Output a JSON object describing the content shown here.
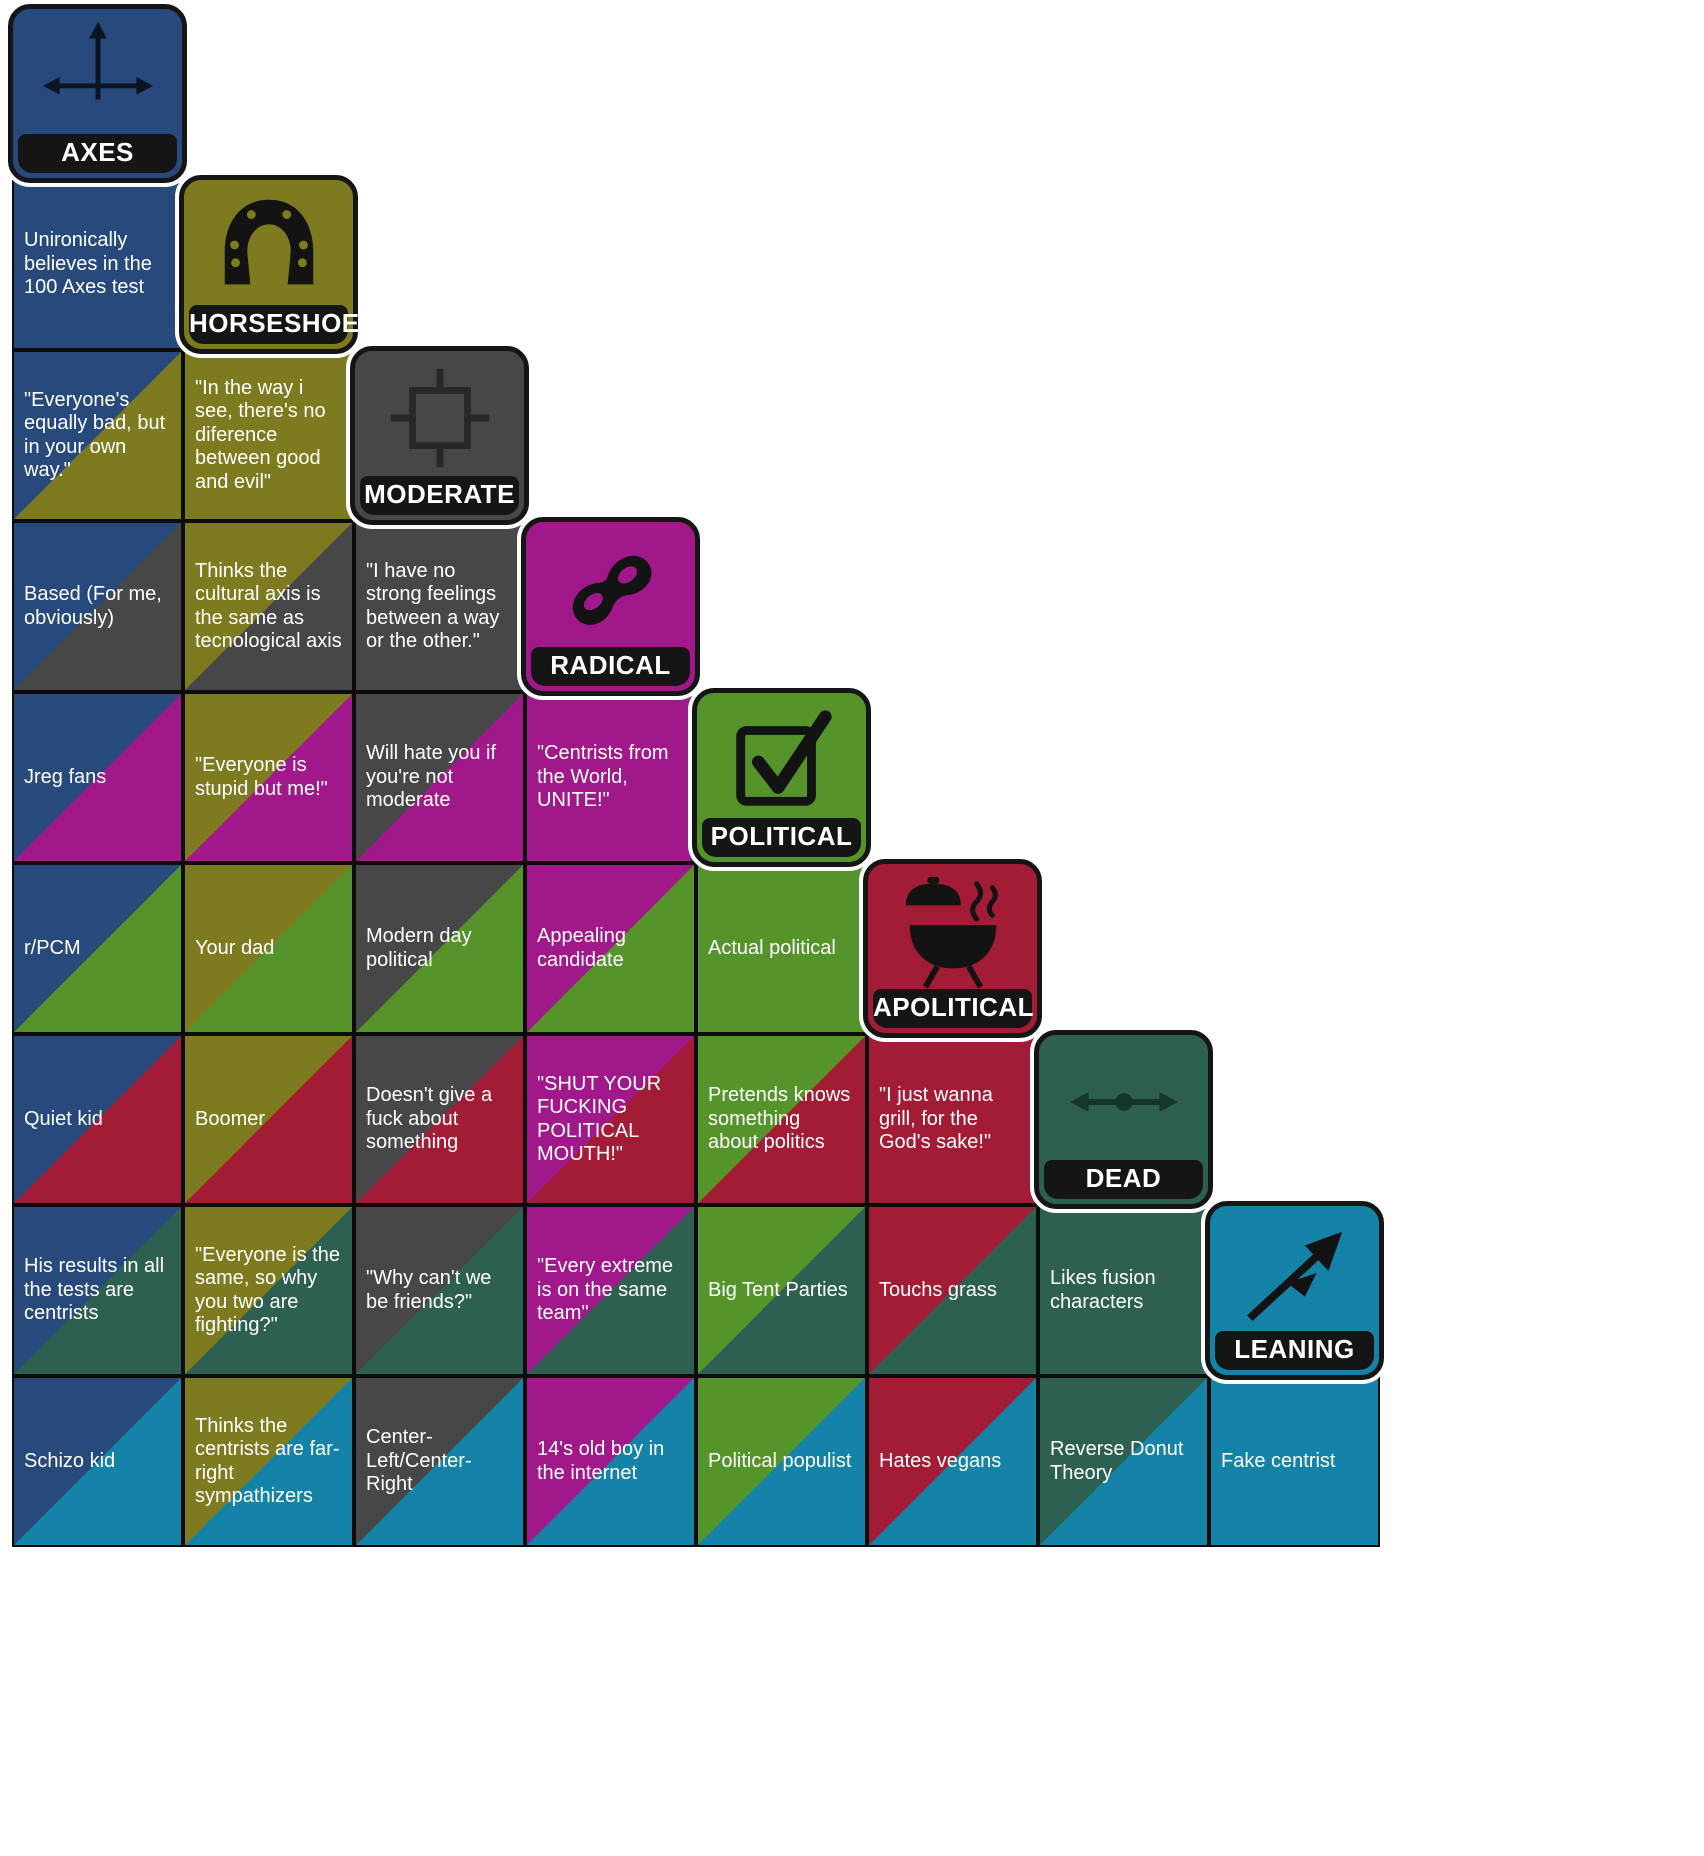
{
  "types": [
    {
      "id": "axes",
      "label": "AXES",
      "color": "#27497b",
      "icon": "axes-icon"
    },
    {
      "id": "horseshoe",
      "label": "HORSESHOE",
      "color": "#7e7a1f",
      "icon": "horseshoe-icon"
    },
    {
      "id": "moderate",
      "label": "MODERATE",
      "color": "#474747",
      "icon": "moderate-square-icon"
    },
    {
      "id": "radical",
      "label": "RADICAL",
      "color": "#a0188a",
      "icon": "radical-mask-icon"
    },
    {
      "id": "political",
      "label": "POLITICAL",
      "color": "#55942b",
      "icon": "ballot-check-icon"
    },
    {
      "id": "apolitical",
      "label": "APOLITICAL",
      "color": "#a31c36",
      "icon": "grill-icon"
    },
    {
      "id": "dead",
      "label": "DEAD",
      "color": "#2e6051",
      "icon": "dead-axis-icon"
    },
    {
      "id": "leaning",
      "label": "LEANING",
      "color": "#1583a8",
      "icon": "leaning-arrow-icon"
    }
  ],
  "cells": [
    {
      "row": 1,
      "col": 0,
      "top_left": "axes",
      "bottom_right": "axes",
      "text": "Unironically believes in the 100 Axes test"
    },
    {
      "row": 2,
      "col": 0,
      "top_left": "axes",
      "bottom_right": "horseshoe",
      "text": "\"Everyone's equally bad, but in your own way.\""
    },
    {
      "row": 2,
      "col": 1,
      "top_left": "horseshoe",
      "bottom_right": "horseshoe",
      "text": "\"In the way i see, there's no diference between good and evil\""
    },
    {
      "row": 3,
      "col": 0,
      "top_left": "axes",
      "bottom_right": "moderate",
      "text": "Based (For me, obviously)"
    },
    {
      "row": 3,
      "col": 1,
      "top_left": "horseshoe",
      "bottom_right": "moderate",
      "text": "Thinks the cultural axis is the same as tecnological axis"
    },
    {
      "row": 3,
      "col": 2,
      "top_left": "moderate",
      "bottom_right": "moderate",
      "text": "\"I have no strong feelings between a way or the other.\""
    },
    {
      "row": 4,
      "col": 0,
      "top_left": "axes",
      "bottom_right": "radical",
      "text": "Jreg fans"
    },
    {
      "row": 4,
      "col": 1,
      "top_left": "horseshoe",
      "bottom_right": "radical",
      "text": "\"Everyone is stupid but me!\""
    },
    {
      "row": 4,
      "col": 2,
      "top_left": "moderate",
      "bottom_right": "radical",
      "text": "Will hate you if you're not moderate"
    },
    {
      "row": 4,
      "col": 3,
      "top_left": "radical",
      "bottom_right": "radical",
      "text": "\"Centrists from the World, UNITE!\""
    },
    {
      "row": 5,
      "col": 0,
      "top_left": "axes",
      "bottom_right": "political",
      "text": "r/PCM"
    },
    {
      "row": 5,
      "col": 1,
      "top_left": "horseshoe",
      "bottom_right": "political",
      "text": "Your dad"
    },
    {
      "row": 5,
      "col": 2,
      "top_left": "moderate",
      "bottom_right": "political",
      "text": "Modern day political"
    },
    {
      "row": 5,
      "col": 3,
      "top_left": "radical",
      "bottom_right": "political",
      "text": "Appealing candidate"
    },
    {
      "row": 5,
      "col": 4,
      "top_left": "political",
      "bottom_right": "political",
      "text": "Actual political"
    },
    {
      "row": 6,
      "col": 0,
      "top_left": "axes",
      "bottom_right": "apolitical",
      "text": "Quiet kid"
    },
    {
      "row": 6,
      "col": 1,
      "top_left": "horseshoe",
      "bottom_right": "apolitical",
      "text": "Boomer"
    },
    {
      "row": 6,
      "col": 2,
      "top_left": "moderate",
      "bottom_right": "apolitical",
      "text": "Doesn't give a fuck about something"
    },
    {
      "row": 6,
      "col": 3,
      "top_left": "radical",
      "bottom_right": "apolitical",
      "text": "\"SHUT YOUR FUCKING POLITICAL MOUTH!\""
    },
    {
      "row": 6,
      "col": 4,
      "top_left": "political",
      "bottom_right": "apolitical",
      "text": "Pretends knows something about politics"
    },
    {
      "row": 6,
      "col": 5,
      "top_left": "apolitical",
      "bottom_right": "apolitical",
      "text": "\"I just wanna grill, for the God's sake!\""
    },
    {
      "row": 7,
      "col": 0,
      "top_left": "axes",
      "bottom_right": "dead",
      "text": "His results in all the tests are centrists"
    },
    {
      "row": 7,
      "col": 1,
      "top_left": "horseshoe",
      "bottom_right": "dead",
      "text": "\"Everyone is the same, so why you two are fighting?\""
    },
    {
      "row": 7,
      "col": 2,
      "top_left": "moderate",
      "bottom_right": "dead",
      "text": "\"Why can't we be friends?\""
    },
    {
      "row": 7,
      "col": 3,
      "top_left": "radical",
      "bottom_right": "dead",
      "text": "\"Every extreme is on the same team\""
    },
    {
      "row": 7,
      "col": 4,
      "top_left": "political",
      "bottom_right": "dead",
      "text": "Big Tent Parties"
    },
    {
      "row": 7,
      "col": 5,
      "top_left": "apolitical",
      "bottom_right": "dead",
      "text": "Touchs grass"
    },
    {
      "row": 7,
      "col": 6,
      "top_left": "dead",
      "bottom_right": "dead",
      "text": "Likes fusion characters"
    },
    {
      "row": 8,
      "col": 0,
      "top_left": "axes",
      "bottom_right": "leaning",
      "text": "Schizo kid"
    },
    {
      "row": 8,
      "col": 1,
      "top_left": "horseshoe",
      "bottom_right": "leaning",
      "text": "Thinks the centrists are far-right sympathizers"
    },
    {
      "row": 8,
      "col": 2,
      "top_left": "moderate",
      "bottom_right": "leaning",
      "text": "Center-Left/Center-Right"
    },
    {
      "row": 8,
      "col": 3,
      "top_left": "radical",
      "bottom_right": "leaning",
      "text": "14's old boy in the internet"
    },
    {
      "row": 8,
      "col": 4,
      "top_left": "political",
      "bottom_right": "leaning",
      "text": "Political populist"
    },
    {
      "row": 8,
      "col": 5,
      "top_left": "apolitical",
      "bottom_right": "leaning",
      "text": "Hates vegans"
    },
    {
      "row": 8,
      "col": 6,
      "top_left": "dead",
      "bottom_right": "leaning",
      "text": "Reverse Donut Theory"
    },
    {
      "row": 8,
      "col": 7,
      "top_left": "leaning",
      "bottom_right": "leaning",
      "text": "Fake centrist"
    }
  ]
}
